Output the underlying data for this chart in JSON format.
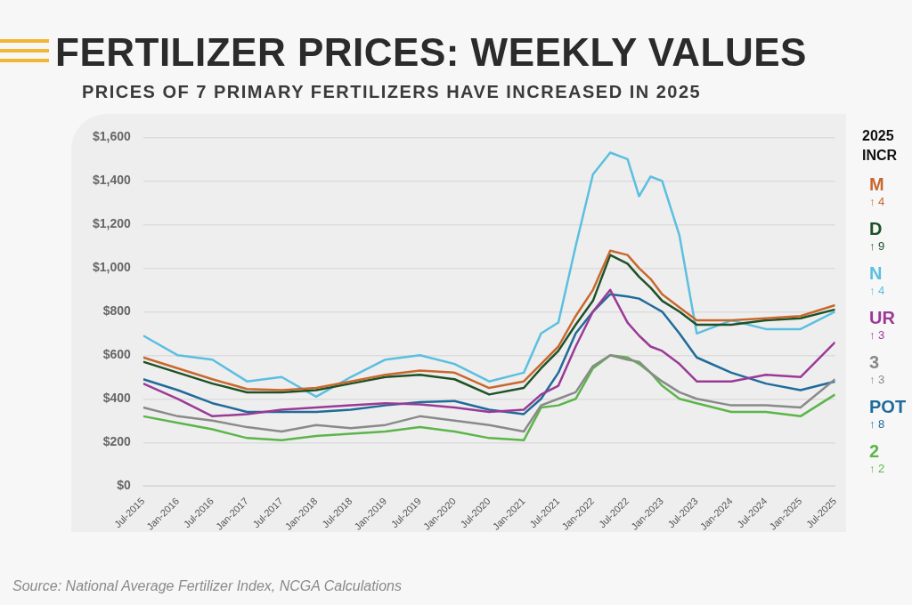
{
  "chart_data": {
    "type": "line",
    "title": "FERTILIZER PRICES: WEEKLY VALUES",
    "subtitle": "PRICES OF 7 PRIMARY FERTILIZERS HAVE INCREASED IN 2025",
    "x": [
      "2015-07",
      "2016-01",
      "2016-07",
      "2017-01",
      "2017-07",
      "2018-01",
      "2018-07",
      "2019-01",
      "2019-07",
      "2020-01",
      "2020-07",
      "2021-01",
      "2021-04",
      "2021-07",
      "2021-10",
      "2022-01",
      "2022-04",
      "2022-07",
      "2022-09",
      "2022-11",
      "2023-01",
      "2023-04",
      "2023-07",
      "2024-01",
      "2024-07",
      "2025-01",
      "2025-07"
    ],
    "series": [
      {
        "name": "M",
        "color": "#c8682f",
        "values": [
          590,
          540,
          490,
          445,
          440,
          450,
          480,
          510,
          530,
          520,
          450,
          480,
          560,
          640,
          780,
          900,
          1080,
          1060,
          1000,
          950,
          880,
          820,
          760,
          760,
          770,
          780,
          830
        ]
      },
      {
        "name": "D",
        "color": "#1d5226",
        "values": [
          570,
          520,
          470,
          430,
          430,
          440,
          470,
          500,
          510,
          490,
          420,
          450,
          540,
          620,
          740,
          850,
          1060,
          1020,
          960,
          910,
          850,
          800,
          740,
          740,
          760,
          770,
          810
        ]
      },
      {
        "name": "N",
        "color": "#5bbfe0",
        "values": [
          690,
          600,
          580,
          480,
          500,
          410,
          500,
          580,
          600,
          560,
          480,
          520,
          700,
          750,
          1100,
          1430,
          1530,
          1500,
          1330,
          1420,
          1400,
          1150,
          700,
          760,
          720,
          720,
          800
        ]
      },
      {
        "name": "UR",
        "color": "#9b3a96",
        "values": [
          470,
          400,
          320,
          330,
          350,
          360,
          370,
          380,
          375,
          360,
          340,
          350,
          420,
          460,
          640,
          800,
          900,
          750,
          690,
          640,
          620,
          560,
          480,
          480,
          510,
          500,
          660
        ]
      },
      {
        "name": "3",
        "color": "#8a8a8a",
        "values": [
          360,
          320,
          300,
          270,
          250,
          280,
          265,
          280,
          320,
          300,
          280,
          250,
          370,
          400,
          430,
          550,
          600,
          580,
          570,
          520,
          480,
          430,
          400,
          370,
          370,
          360,
          490
        ]
      },
      {
        "name": "POT",
        "color": "#1f6b9a",
        "values": [
          490,
          440,
          380,
          340,
          340,
          340,
          350,
          370,
          385,
          390,
          350,
          330,
          400,
          520,
          700,
          800,
          880,
          870,
          860,
          830,
          800,
          700,
          590,
          520,
          470,
          440,
          480
        ]
      },
      {
        "name": "2",
        "color": "#5cb54a",
        "values": [
          320,
          290,
          260,
          220,
          210,
          230,
          240,
          250,
          270,
          250,
          220,
          210,
          360,
          370,
          400,
          540,
          600,
          590,
          560,
          520,
          460,
          400,
          380,
          340,
          340,
          320,
          420
        ]
      }
    ],
    "legend": "right",
    "legend_title": "2025 INCR",
    "annotations": [
      "Source: National Average Fertilizer Index, NCGA Calculations",
      "↑ 4",
      "↑ 9",
      "↑ 4",
      "↑ 3",
      "↑ 3",
      "↑ 8",
      "↑ 2"
    ],
    "xlim": [
      "2015-07",
      "2025-07"
    ],
    "xticks": [
      {
        "value": "2015-07",
        "label": "Jul-2015"
      },
      {
        "value": "2016-01",
        "label": "Jan-2016"
      },
      {
        "value": "2016-07",
        "label": "Jul-2016"
      },
      {
        "value": "2017-01",
        "label": "Jan-2017"
      },
      {
        "value": "2017-07",
        "label": "Jul-2017"
      },
      {
        "value": "2018-01",
        "label": "Jan-2018"
      },
      {
        "value": "2018-07",
        "label": "Jul-2018"
      },
      {
        "value": "2019-01",
        "label": "Jan-2019"
      },
      {
        "value": "2019-07",
        "label": "Jul-2019"
      },
      {
        "value": "2020-01",
        "label": "Jan-2020"
      },
      {
        "value": "2020-07",
        "label": "Jul-2020"
      },
      {
        "value": "2021-01",
        "label": "Jan-2021"
      },
      {
        "value": "2021-07",
        "label": "Jul-2021"
      },
      {
        "value": "2022-01",
        "label": "Jan-2022"
      },
      {
        "value": "2022-07",
        "label": "Jul-2022"
      },
      {
        "value": "2023-01",
        "label": "Jan-2023"
      },
      {
        "value": "2023-07",
        "label": "Jul-2023"
      },
      {
        "value": "2024-01",
        "label": "Jan-2024"
      },
      {
        "value": "2024-07",
        "label": "Jul-2024"
      },
      {
        "value": "2025-01",
        "label": "Jan-2025"
      },
      {
        "value": "2025-07",
        "label": "Jul-2025"
      }
    ],
    "ylim": [
      0,
      1600
    ],
    "yticks": [
      {
        "value": 0,
        "label": "$0"
      },
      {
        "value": 200,
        "label": "$200"
      },
      {
        "value": 400,
        "label": "$400"
      },
      {
        "value": 600,
        "label": "$600"
      },
      {
        "value": 800,
        "label": "$800"
      },
      {
        "value": 1000,
        "label": "$1,000"
      },
      {
        "value": 1200,
        "label": "$1,200"
      },
      {
        "value": 1400,
        "label": "$1,400"
      },
      {
        "value": 1600,
        "label": "$1,600"
      }
    ],
    "grid": "y",
    "marker": "none",
    "line_style": "solid"
  }
}
